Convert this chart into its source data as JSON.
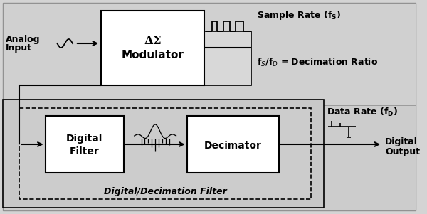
{
  "bg_color": "#d4d4d4",
  "top_band_color": "#c8c8c8",
  "bottom_band_color": "#c8c8c8",
  "box_color": "#ffffff",
  "box_edge": "#000000",
  "modulator_label1": "ΔΣ",
  "modulator_label2": "Modulator",
  "digital_filter_label1": "Digital",
  "digital_filter_label2": "Filter",
  "decimator_label": "Decimator",
  "dashed_box_label": "Digital/Decimation Filter",
  "analog_input_label1": "Analog",
  "analog_input_label2": "Input",
  "digital_output_label1": "Digital",
  "digital_output_label2": "Output",
  "sample_rate_label": "Sample Rate (f$_\\mathbf{S}$)",
  "decimation_ratio_label": "f$_S$/f$_D$ = Decimation Ratio",
  "data_rate_label": "Data Rate (f$_D$)"
}
